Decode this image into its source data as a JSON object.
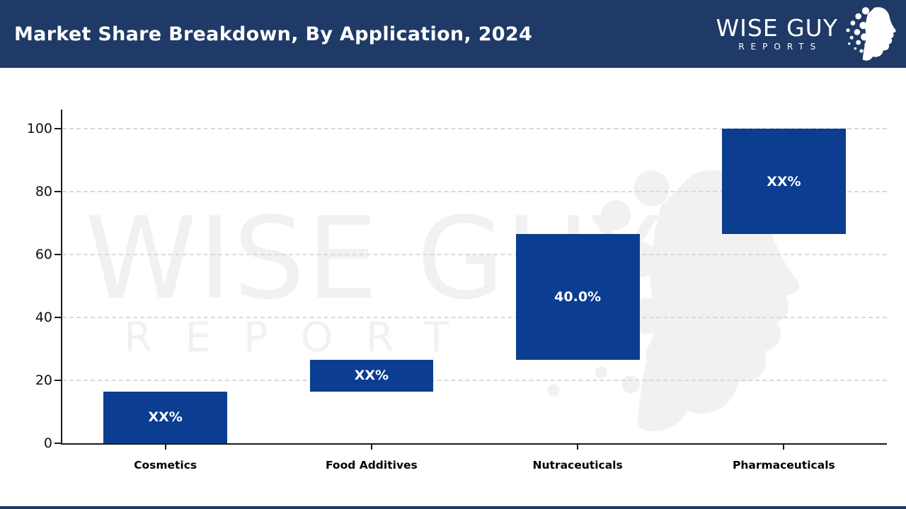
{
  "header": {
    "title": "Market Share Breakdown, By Application, 2024",
    "brand": {
      "name": "WISE GUY",
      "sub": "REPORTS"
    }
  },
  "watermark": {
    "text": "WISE GUY",
    "sub": "REPORT"
  },
  "chart_data": {
    "type": "bar",
    "subtype": "waterfall",
    "title": "Market Share Breakdown, By Application, 2024",
    "categories": [
      "Cosmetics",
      "Food Additives",
      "Nutraceuticals",
      "Pharmaceuticals"
    ],
    "segments": [
      {
        "category": "Cosmetics",
        "start": 0,
        "end": 16.5,
        "label": "XX%"
      },
      {
        "category": "Food Additives",
        "start": 16.5,
        "end": 26.5,
        "label": "XX%"
      },
      {
        "category": "Nutraceuticals",
        "start": 26.5,
        "end": 66.5,
        "label": "40.0%"
      },
      {
        "category": "Pharmaceuticals",
        "start": 66.5,
        "end": 100,
        "label": "XX%"
      }
    ],
    "yticks": [
      0,
      20,
      40,
      60,
      80,
      100
    ],
    "ylim": [
      0,
      105
    ],
    "xlabel": "",
    "ylabel": "",
    "grid": "horizontal-dashed",
    "legend": "none",
    "bar_width_fraction": 0.6
  },
  "colors": {
    "page_bg": "#ffffff",
    "header_bg": "#1f3a67",
    "footer_bg": "#1f3a67",
    "title": "#ffffff",
    "bar": "#0b3d91",
    "bar_label": "#ffffff",
    "grid": "#d9d9d9",
    "axis": "#1a1a1a",
    "tick_label": "#111111",
    "watermark": "#f1f1f4"
  }
}
